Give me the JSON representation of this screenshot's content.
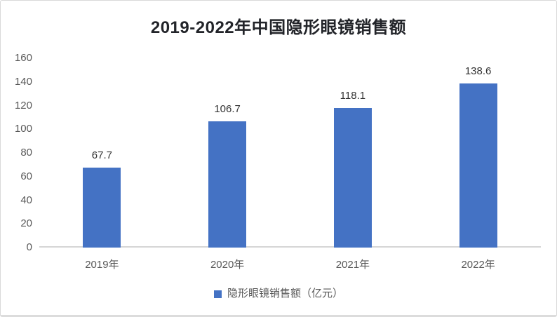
{
  "card": {
    "background": "#ffffff",
    "border_color": "#d9d9d9"
  },
  "chart_data": {
    "type": "bar",
    "title": "2019-2022年中国隐形眼镜销售额",
    "categories": [
      "2019年",
      "2020年",
      "2021年",
      "2022年"
    ],
    "series": [
      {
        "name": "隐形眼镜销售额（亿元）",
        "values": [
          67.7,
          106.7,
          118.1,
          138.6
        ]
      }
    ],
    "data_labels": [
      "67.7",
      "106.7",
      "118.1",
      "138.6"
    ],
    "xlabel": "",
    "ylabel": "",
    "ylim": [
      0,
      160
    ],
    "yticks": [
      0,
      20,
      40,
      60,
      80,
      100,
      120,
      140,
      160
    ],
    "grid": false,
    "legend_position": "bottom",
    "legend_marker": "square-icon",
    "bar_color": "#4472C4",
    "axis_line_color": "#d6d6d6",
    "tick_label_color": "#595959",
    "data_label_color": "#333333",
    "title_color": "#222429"
  }
}
